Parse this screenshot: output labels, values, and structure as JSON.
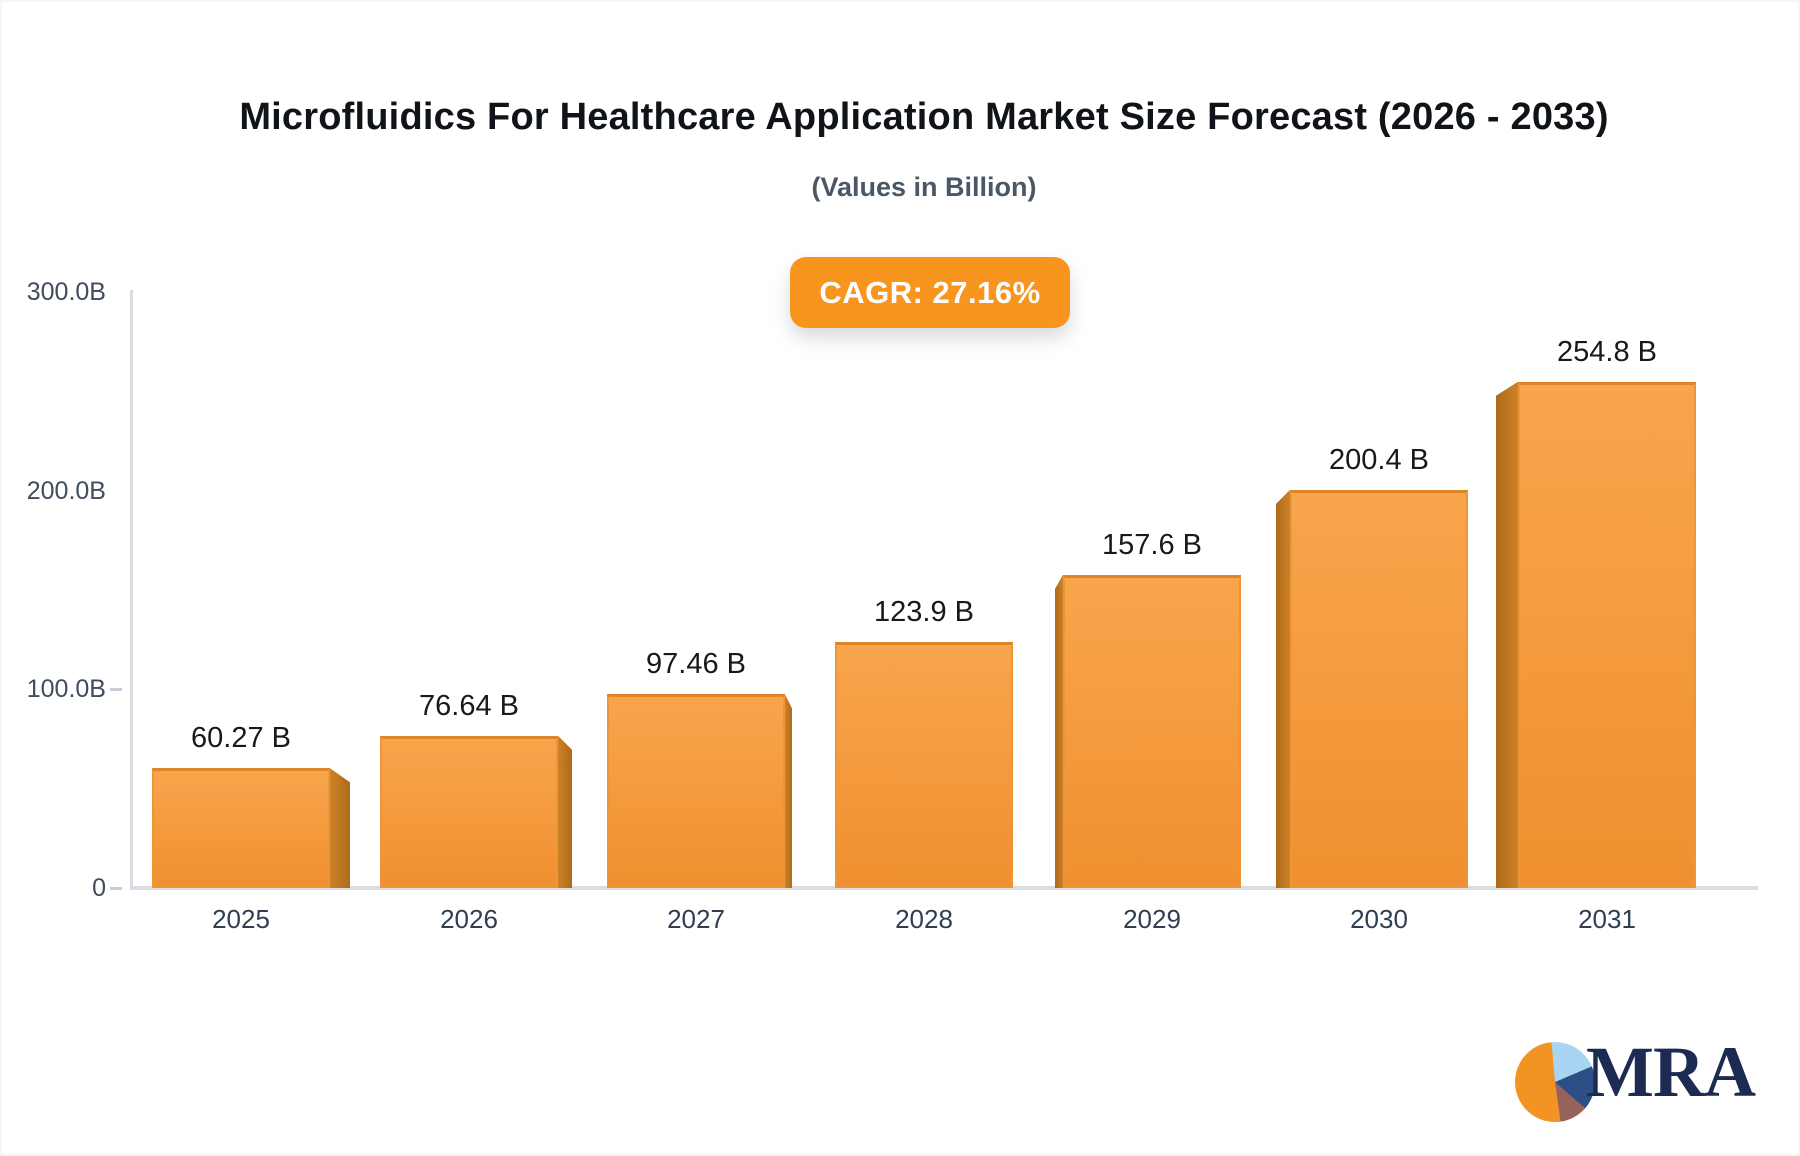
{
  "header": {
    "title": "Microfluidics For Healthcare Application Market Size Forecast (2026 - 2033)",
    "subtitle": "(Values in Billion)"
  },
  "badge": {
    "label": "CAGR: 27.16%"
  },
  "chart_data": {
    "type": "bar",
    "title": "Microfluidics For Healthcare Application Market Size Forecast (2026 - 2033)",
    "subtitle": "(Values in Billion)",
    "cagr": "27.16%",
    "categories": [
      "2025",
      "2026",
      "2027",
      "2028",
      "2029",
      "2030",
      "2031"
    ],
    "values": [
      60.27,
      76.64,
      97.46,
      123.9,
      157.6,
      200.4,
      254.8
    ],
    "value_labels": [
      "60.27 B",
      "76.64 B",
      "97.46 B",
      "123.9 B",
      "157.6 B",
      "200.4 B",
      "254.8 B"
    ],
    "xlabel": "",
    "ylabel": "",
    "ylim": [
      0,
      300
    ],
    "grid": false,
    "legend": false,
    "y_ticks": [
      {
        "label": "300.0B",
        "value": 300,
        "dash": false
      },
      {
        "label": "200.0B",
        "value": 200,
        "dash": false
      },
      {
        "label": "100.0B",
        "value": 100,
        "dash": true
      },
      {
        "label": "0",
        "value": 0,
        "dash": true
      }
    ],
    "bar_color_top": "#f8a54c",
    "bar_color_bottom": "#f09030",
    "bar_side_color_light": "#cd8126",
    "bar_side_color_dark": "#ae6b1a"
  },
  "logo": {
    "text": "MRA",
    "pie_colors": {
      "orange": "#f39324",
      "light_blue": "#a9d5f2",
      "navy": "#2c4f85",
      "maroon": "#96625c"
    }
  },
  "colors": {
    "accent_orange": "#f7951f",
    "axis": "#d9dde3",
    "tick_label": "#3f4d5e",
    "year_label": "#2f3e52",
    "value_label": "#16191d"
  }
}
